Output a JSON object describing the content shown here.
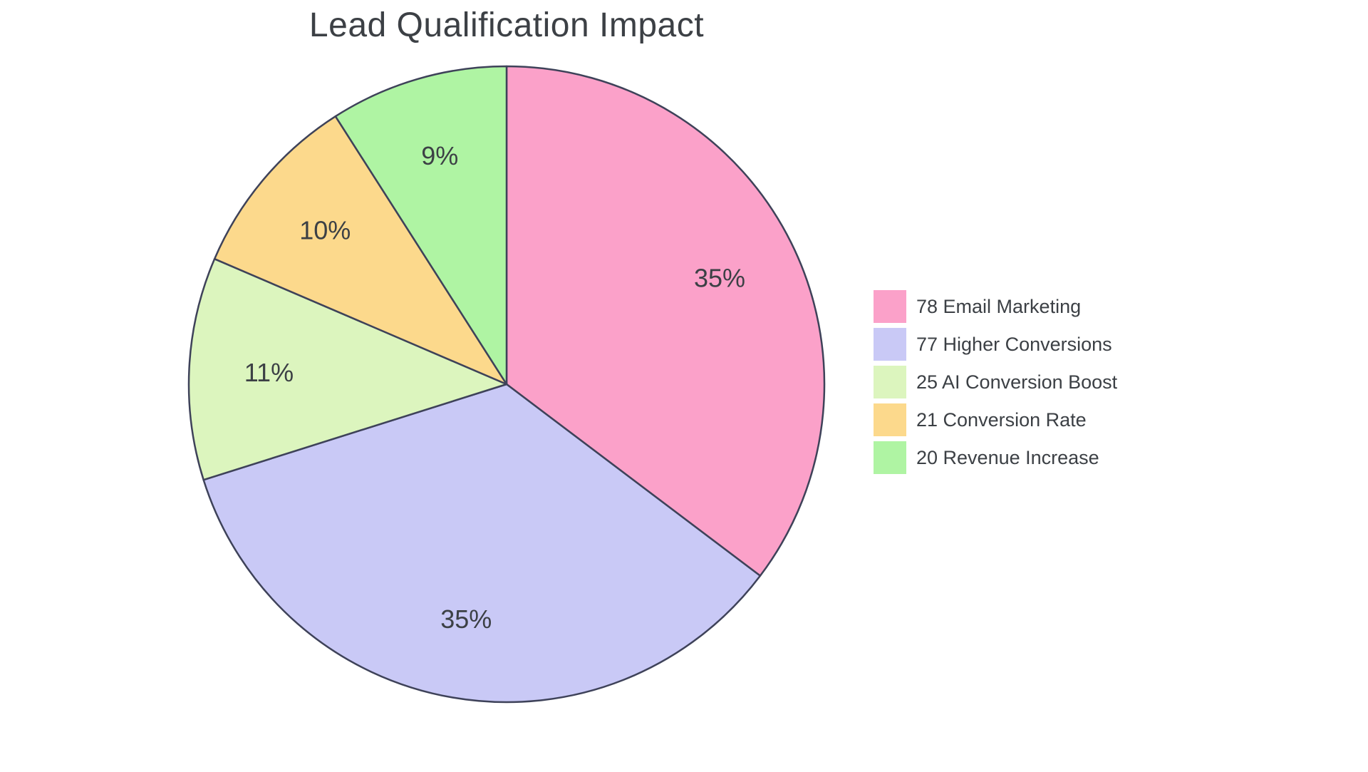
{
  "title": "Lead Qualification Impact",
  "colors": {
    "background": "#ffffff",
    "stroke": "#3e4259",
    "text": "#3c4045"
  },
  "chart_data": {
    "type": "pie",
    "title": "Lead Qualification Impact",
    "start_angle_deg": 0,
    "direction": "clockwise",
    "legend_position": "right",
    "stroke_color": "#3e4259",
    "label_color": "#3c4045",
    "slices": [
      {
        "label": "78 Email Marketing",
        "value": 78,
        "pct": 35,
        "pct_label": "35%",
        "color": "#fba1c9"
      },
      {
        "label": "77 Higher Conversions",
        "value": 77,
        "pct": 35,
        "pct_label": "35%",
        "color": "#c9c9f6"
      },
      {
        "label": "25 AI Conversion Boost",
        "value": 25,
        "pct": 11,
        "pct_label": "11%",
        "color": "#dcf5be"
      },
      {
        "label": "21 Conversion Rate",
        "value": 21,
        "pct": 10,
        "pct_label": "10%",
        "color": "#fcd98c"
      },
      {
        "label": "20 Revenue Increase",
        "value": 20,
        "pct": 9,
        "pct_label": "9%",
        "color": "#aff4a3"
      }
    ]
  }
}
